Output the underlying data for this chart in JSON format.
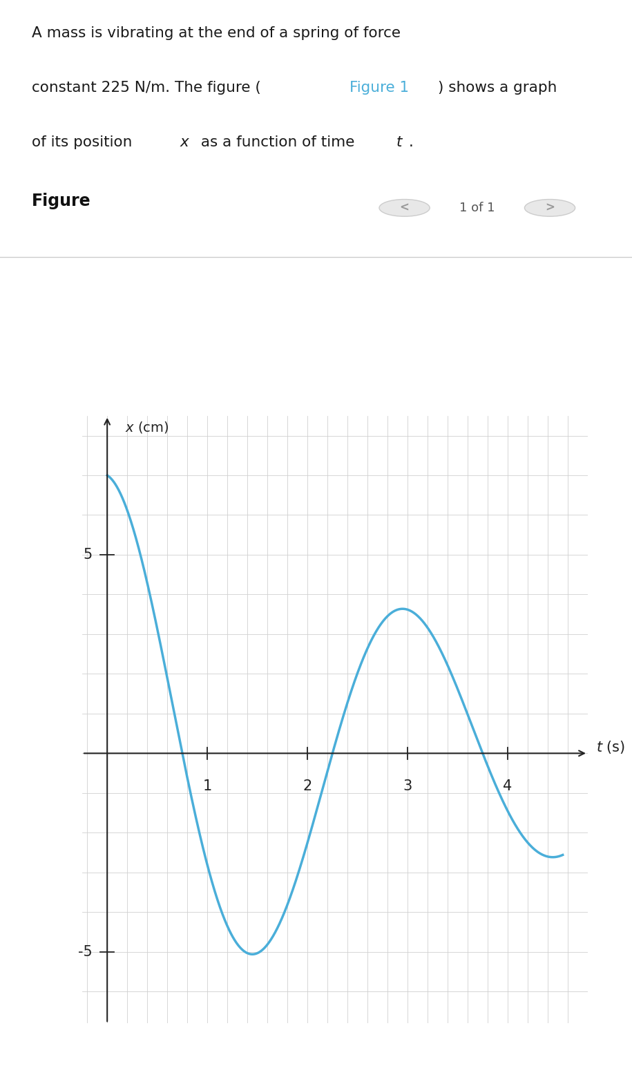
{
  "background_color_top": "#e8f4f8",
  "background_color_page": "#ffffff",
  "figure_label": "Figure",
  "figure_nav": "1 of 1",
  "curve_color": "#4aaed9",
  "curve_linewidth": 2.5,
  "amplitude_0": 7.0,
  "damping": 0.22,
  "omega": 2.0944,
  "phi": 0.0,
  "t_start": 0.0,
  "t_end": 4.55,
  "xlim": [
    -0.25,
    4.8
  ],
  "ylim": [
    -6.8,
    8.5
  ],
  "xticks": [
    1,
    2,
    3,
    4
  ],
  "yticks": [
    -5,
    5
  ],
  "grid_color": "#d0d0d0",
  "grid_linewidth": 0.6,
  "axis_color": "#222222",
  "tick_color": "#222222",
  "figure_ref_color": "#4aaed9",
  "nav_circle_color": "#e8e8e8",
  "nav_circle_border": "#cccccc",
  "separator_color": "#cccccc",
  "text_fontsize": 15.5,
  "text_color": "#1a1a1a"
}
